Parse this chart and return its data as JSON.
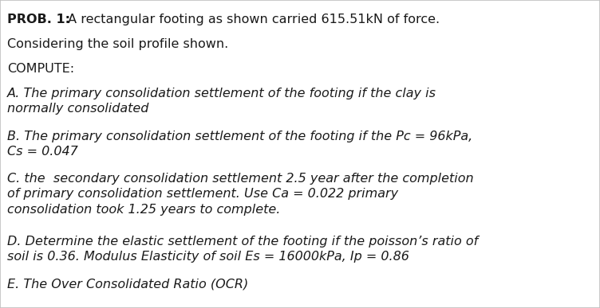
{
  "background_color": "#ffffff",
  "border_color": "#c0c0c0",
  "text_color": "#1a1a1a",
  "font_family": "DejaVu Sans",
  "fontsize": 11.5,
  "line1_bold": "PROB. 1:",
  "line1_normal": " A rectangular footing as shown carried 615.51kN of force.",
  "line2": "Considering the soil profile shown.",
  "line3": "COMPUTE:",
  "lineA": "A. The primary consolidation settlement of the footing if the clay is\nnormally consolidated",
  "lineB": "B. The primary consolidation settlement of the footing if the Pc = 96kPa,\nCs = 0.047",
  "lineC": "C. the  secondary consolidation settlement 2.5 year after the completion\nof primary consolidation settlement. Use Ca = 0.022 primary\nconsolidation took 1.25 years to complete.",
  "lineD": "D. Determine the elastic settlement of the footing if the poisson’s ratio of\nsoil is 0.36. Modulus Elasticity of soil Es = 16000kPa, Ip = 0.86",
  "lineE": "E. The Over Consolidated Ratio (OCR)"
}
